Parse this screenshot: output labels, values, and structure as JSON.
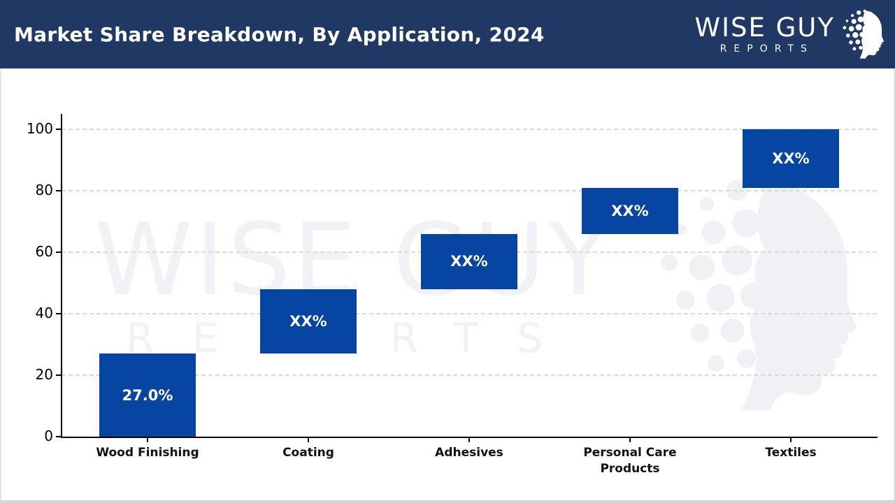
{
  "header": {
    "title": "Market Share Breakdown, By Application, 2024",
    "logo": {
      "wise_guy": "WISE GUY",
      "reports": "REPORTS"
    }
  },
  "watermark": {
    "wise_guy": "WISE GUY",
    "reports": "REPORTS"
  },
  "chart_data": {
    "type": "bar",
    "variant": "floating-waterfall",
    "title": "Market Share Breakdown, By Application, 2024",
    "categories": [
      "Wood Finishing",
      "Coating",
      "Adhesives",
      "Personal Care Products",
      "Textiles"
    ],
    "series": [
      {
        "name": "Market Share (%)",
        "segments": [
          [
            0,
            27
          ],
          [
            27,
            48
          ],
          [
            48,
            66
          ],
          [
            66,
            81
          ],
          [
            81,
            100
          ]
        ],
        "values": [
          27,
          21,
          18,
          15,
          19
        ]
      }
    ],
    "bar_labels": [
      "27.0%",
      "XX%",
      "XX%",
      "XX%",
      "XX%"
    ],
    "xlabel": "",
    "ylabel": "",
    "yticks": [
      0,
      20,
      40,
      60,
      80,
      100
    ],
    "ylim": [
      0,
      105
    ],
    "grid": "horizontal-dashed",
    "legend": "none",
    "bar_color": "#0645A1"
  },
  "colors": {
    "header_bg": "#1F3864",
    "bar": "#0645A1",
    "grid": "#D9D9D9",
    "axis": "#000000",
    "watermark": "#F1F2F5",
    "bar_label_text": "#FFFFFF",
    "title_text": "#FFFFFF"
  }
}
